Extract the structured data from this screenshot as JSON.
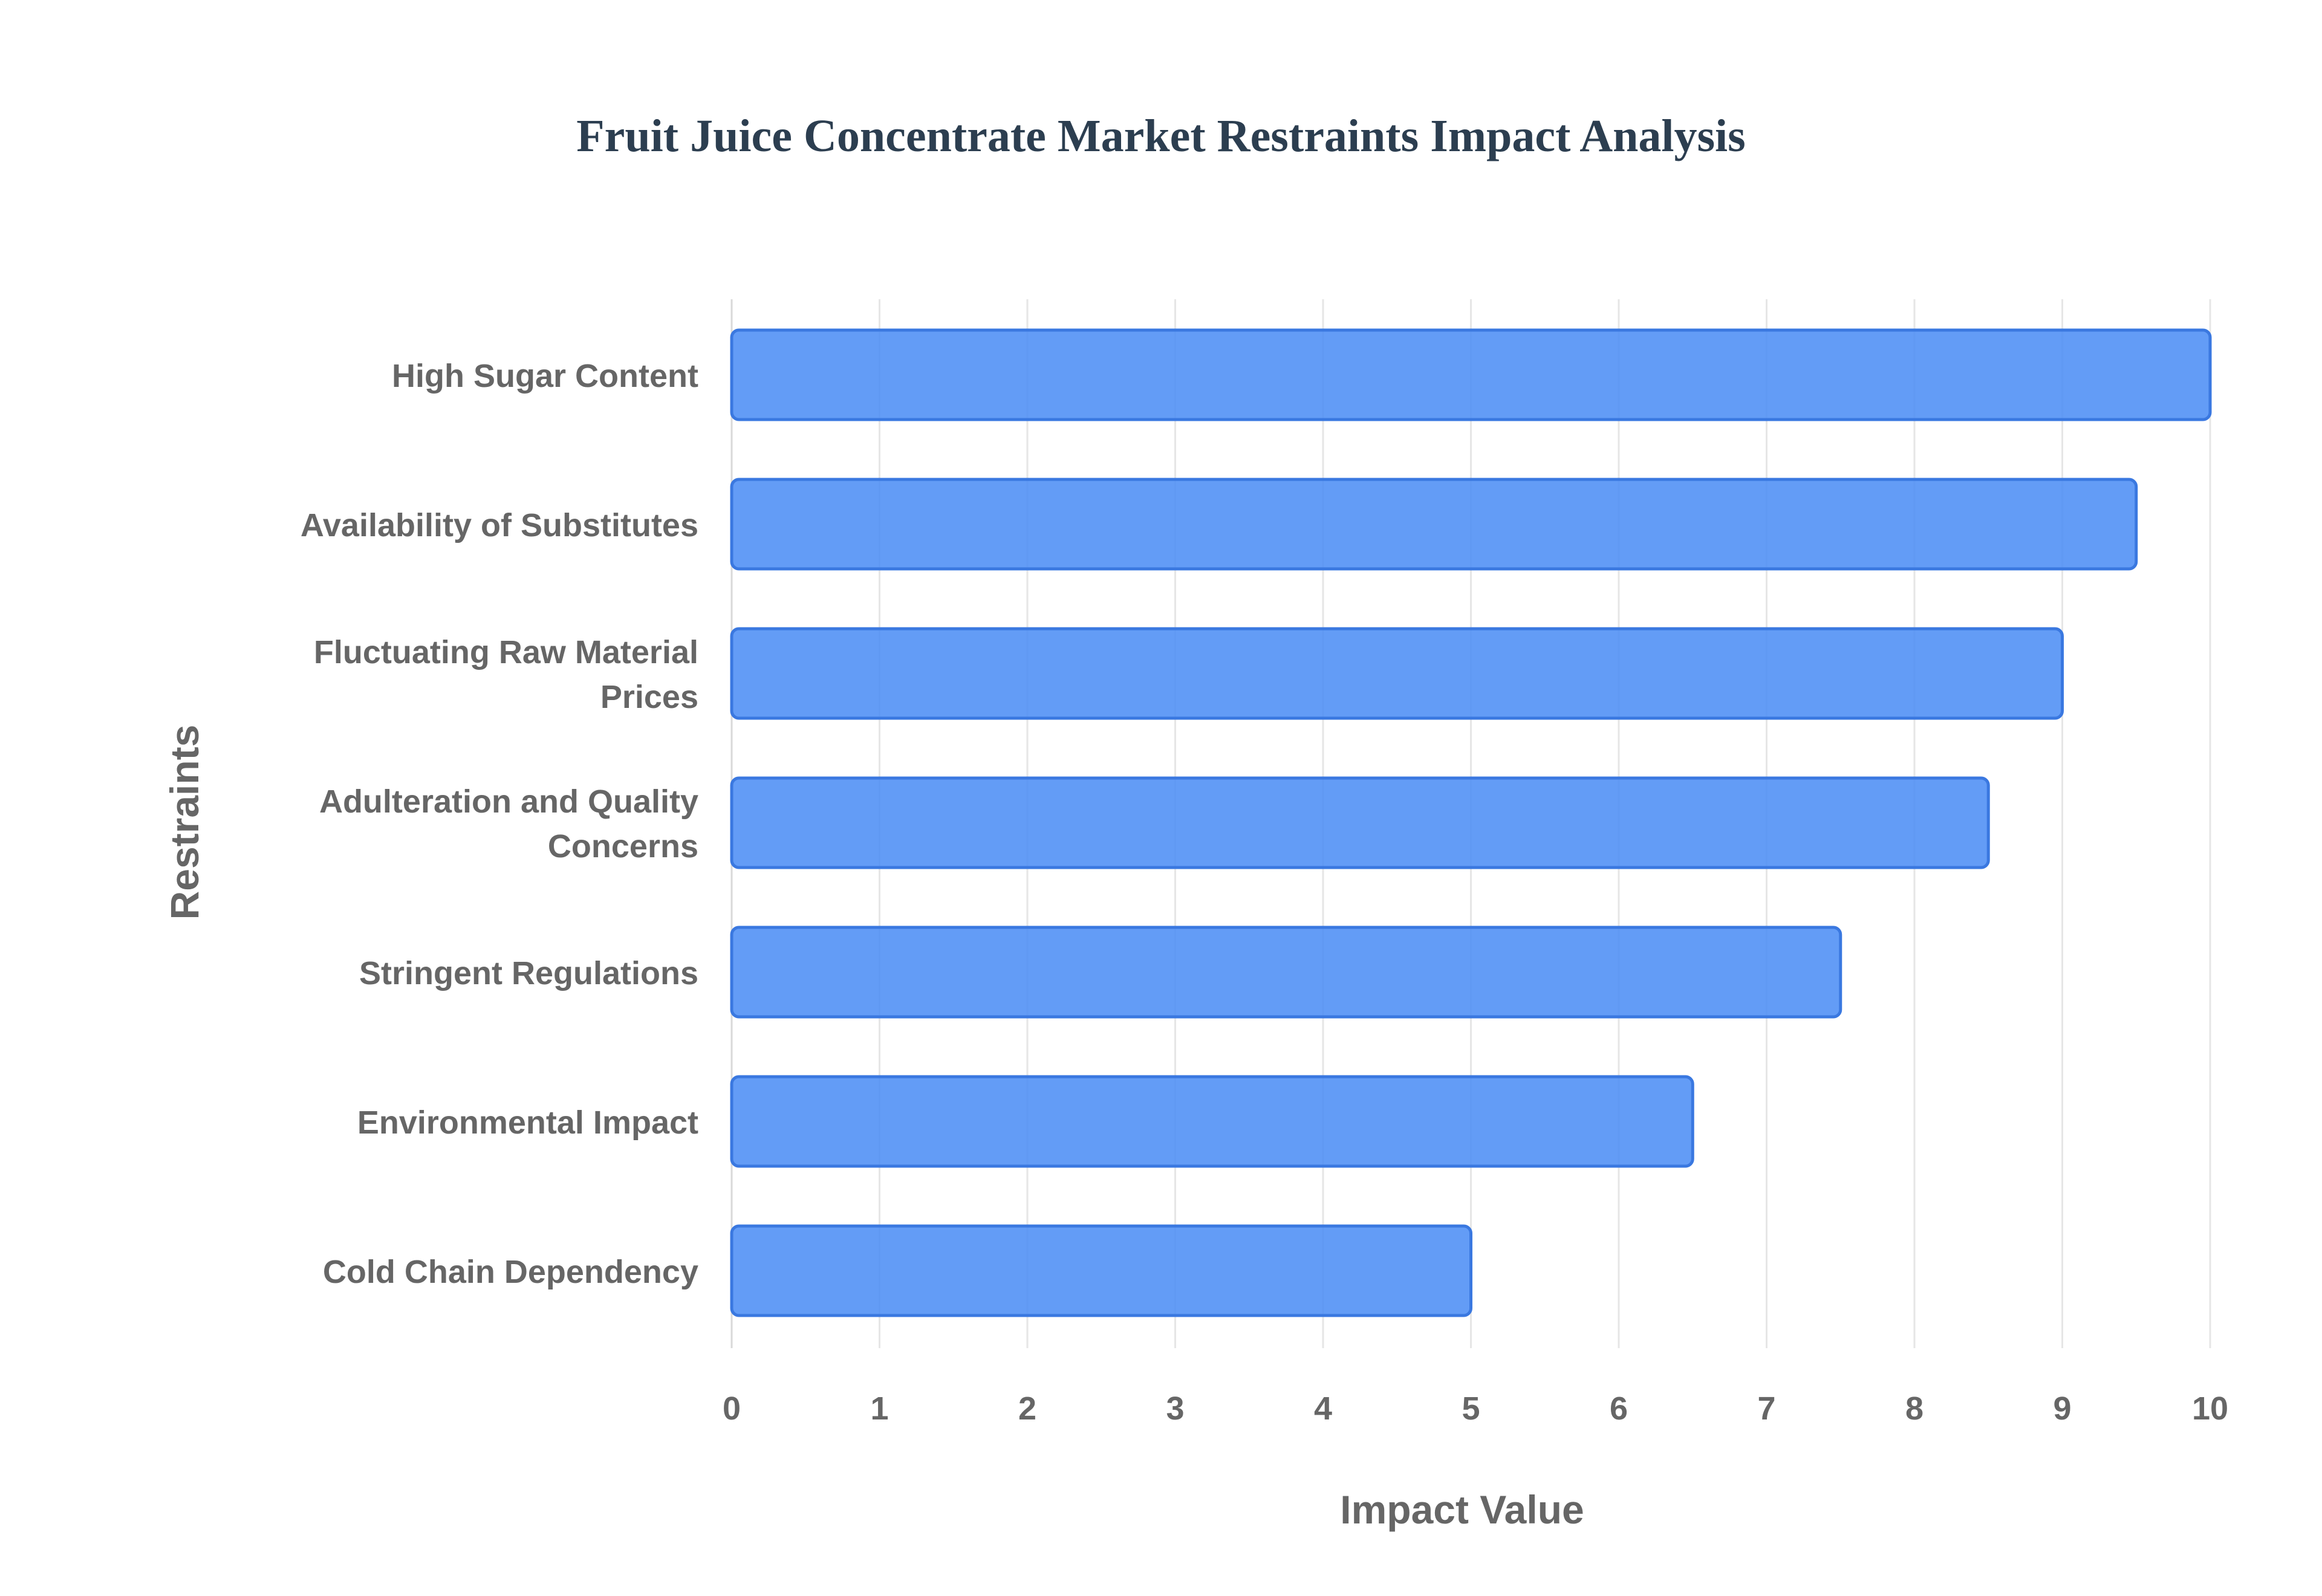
{
  "chart_data": {
    "type": "bar",
    "orientation": "horizontal",
    "title": "Fruit Juice Concentrate Market Restraints Impact Analysis",
    "xlabel": "Impact Value",
    "ylabel": "Restraints",
    "categories": [
      "High Sugar Content",
      "Availability of Substitutes",
      "Fluctuating Raw Material Prices",
      "Adulteration and Quality Concerns",
      "Stringent Regulations",
      "Environmental Impact",
      "Cold Chain Dependency"
    ],
    "category_lines": [
      [
        "High Sugar Content"
      ],
      [
        "Availability of Substitutes"
      ],
      [
        "Fluctuating Raw Material",
        "Prices"
      ],
      [
        "Adulteration and Quality",
        "Concerns"
      ],
      [
        "Stringent Regulations"
      ],
      [
        "Environmental Impact"
      ],
      [
        "Cold Chain Dependency"
      ]
    ],
    "values": [
      10,
      9.5,
      9,
      8.5,
      7.5,
      6.5,
      5
    ],
    "xlim": [
      0,
      10
    ],
    "xticks": [
      0,
      1,
      2,
      3,
      4,
      5,
      6,
      7,
      8,
      9,
      10
    ],
    "grid": true,
    "legend": "none",
    "colors": {
      "bar_fill": "#4d8ef5",
      "bar_stroke": "#3a78e0",
      "title": "#2c3e50",
      "labels": "#666666",
      "grid": "#e6e6e6"
    }
  }
}
